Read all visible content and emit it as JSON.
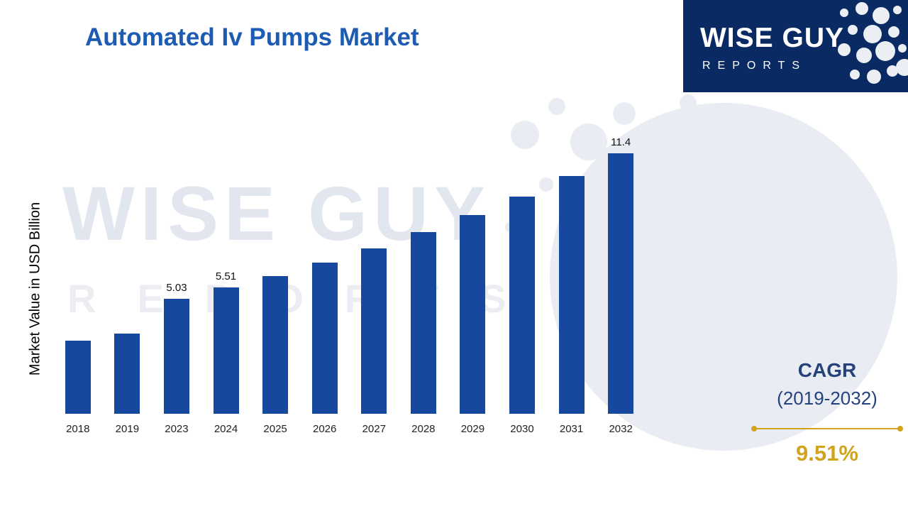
{
  "title": "Automated Iv Pumps Market",
  "brand": {
    "line1": "WISE GUY",
    "line2": "REPORTS"
  },
  "watermark": {
    "line1": "WISE GUY",
    "line2": "REPORTS"
  },
  "chart_data": {
    "type": "bar",
    "title": "Automated Iv Pumps Market",
    "xlabel": "",
    "ylabel": "Market Value in USD Billion",
    "categories": [
      "2018",
      "2019",
      "2023",
      "2024",
      "2025",
      "2026",
      "2027",
      "2028",
      "2029",
      "2030",
      "2031",
      "2032"
    ],
    "values": [
      3.2,
      3.5,
      5.03,
      5.51,
      6.03,
      6.61,
      7.24,
      7.93,
      8.68,
      9.51,
      10.41,
      11.4
    ],
    "value_labels": [
      "",
      "",
      "5.03",
      "5.51",
      "",
      "",
      "",
      "",
      "",
      "",
      "",
      "11.4"
    ],
    "ylim": [
      0,
      13.5
    ],
    "grid": false,
    "legend": "none",
    "bar_color": "#15489e"
  },
  "cagr": {
    "label": "CAGR",
    "range": "(2019-2032)",
    "value": "9.51%"
  },
  "colors": {
    "title": "#1e5cb3",
    "bar": "#15489e",
    "brand_bg": "#0a2a64",
    "cagr_text": "#25427d",
    "accent_gold": "#d2a31c"
  }
}
